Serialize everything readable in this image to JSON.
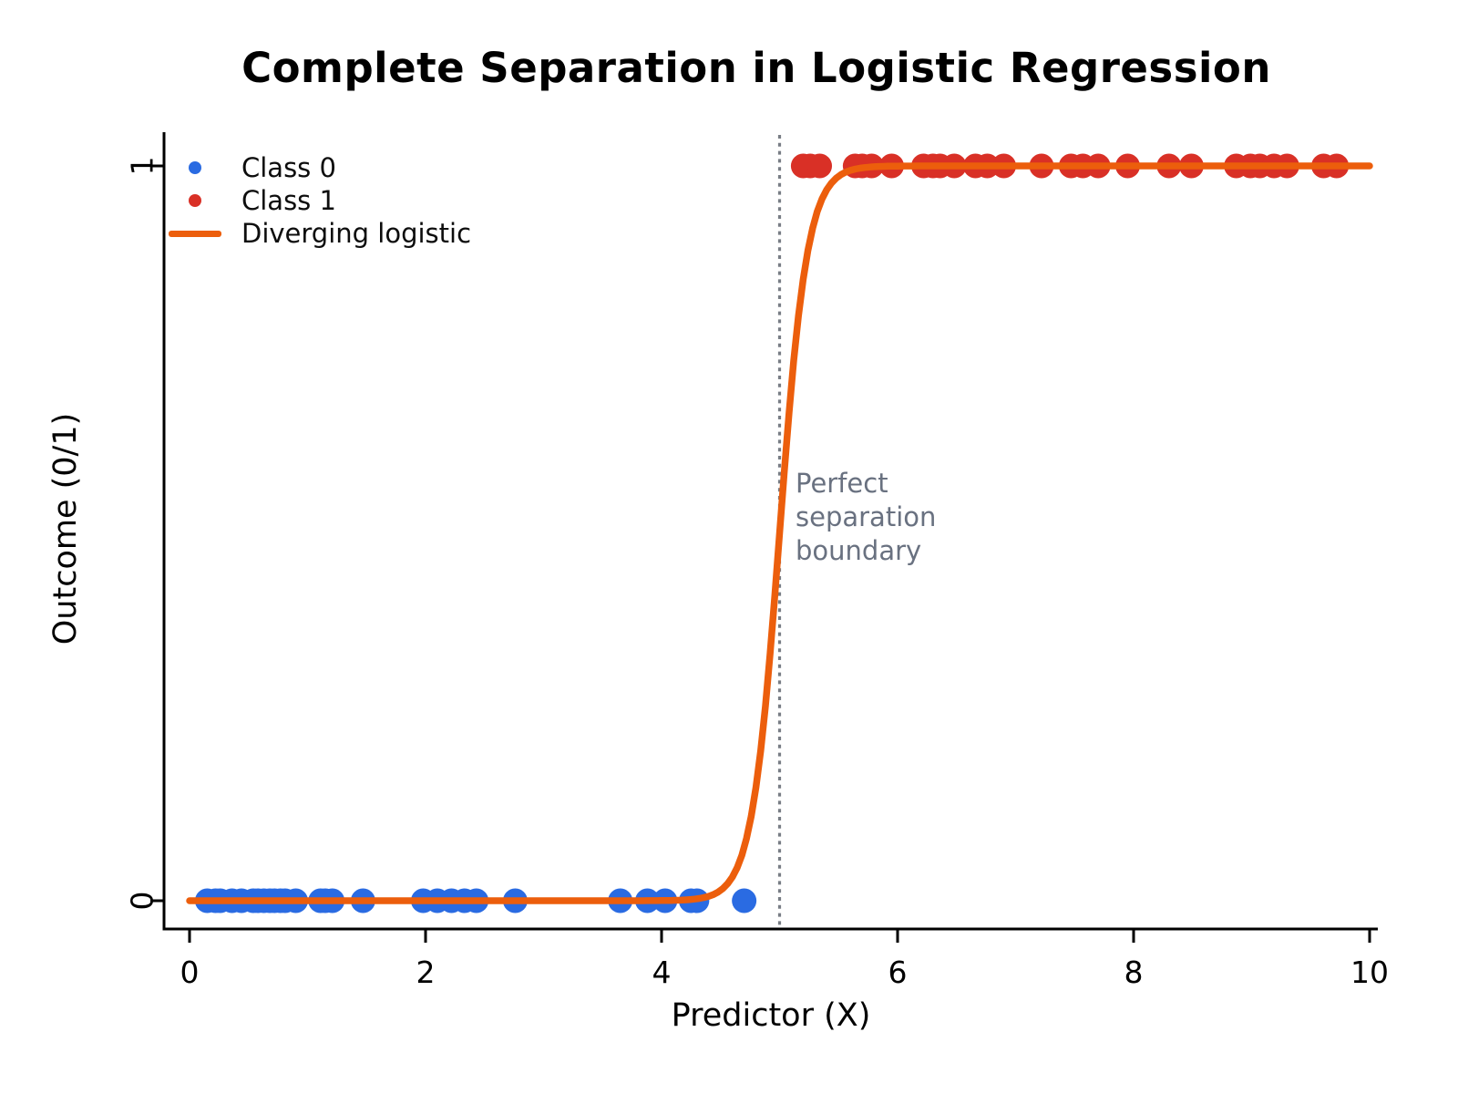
{
  "figure": {
    "title": "Complete Separation in Logistic Regression",
    "x_axis_label": "Predictor (X)",
    "y_axis_label": "Outcome (0/1)",
    "legend": {
      "class0_label": "Class 0",
      "class1_label": "Class 1",
      "curve_label": "Diverging logistic"
    },
    "annotation": {
      "line1": "Perfect",
      "line2": "separation",
      "line3": "boundary"
    }
  },
  "colors": {
    "class0": "#2a6be2",
    "class1": "#d93026",
    "curve": "#ec5e0c",
    "boundary_line": "#787d85",
    "annotation_text": "#697180",
    "axis": "#000000"
  },
  "chart_data": {
    "type": "scatter",
    "title": "Complete Separation in Logistic Regression",
    "xlabel": "Predictor (X)",
    "ylabel": "Outcome (0/1)",
    "xlim": [
      -0.22,
      10.07
    ],
    "ylim": [
      -0.042,
      1.048
    ],
    "x_ticks": [
      0,
      2,
      4,
      6,
      8,
      10
    ],
    "y_ticks": [
      0,
      1
    ],
    "grid": false,
    "legend_position": "upper-left",
    "series": [
      {
        "name": "Class 0",
        "color": "#2a6be2",
        "y_value": 0,
        "marker_radius": 13.5,
        "x": [
          0.15,
          0.22,
          0.26,
          0.36,
          0.44,
          0.54,
          0.58,
          0.63,
          0.68,
          0.72,
          0.77,
          0.81,
          0.9,
          1.11,
          1.15,
          1.21,
          1.47,
          1.98,
          2.1,
          2.22,
          2.33,
          2.43,
          2.76,
          3.65,
          3.88,
          4.03,
          4.25,
          4.3,
          4.7
        ]
      },
      {
        "name": "Class 1",
        "color": "#d93026",
        "y_value": 1,
        "marker_radius": 13.5,
        "x": [
          5.2,
          5.26,
          5.34,
          5.64,
          5.7,
          5.78,
          5.95,
          6.22,
          6.3,
          6.36,
          6.48,
          6.66,
          6.76,
          6.9,
          7.22,
          7.47,
          7.57,
          7.7,
          7.95,
          8.3,
          8.49,
          8.87,
          8.99,
          9.07,
          9.19,
          9.3,
          9.61,
          9.72
        ]
      }
    ],
    "curve": {
      "name": "Diverging logistic",
      "color": "#ec5e0c",
      "function": "logistic",
      "x0": 5.0,
      "k": 8.5,
      "x_range": [
        0,
        10
      ],
      "stroke_width": 7.5
    },
    "boundary_line": {
      "x": 5.0,
      "style": "dotted",
      "color": "#787d85",
      "label": "Perfect separation boundary"
    }
  }
}
